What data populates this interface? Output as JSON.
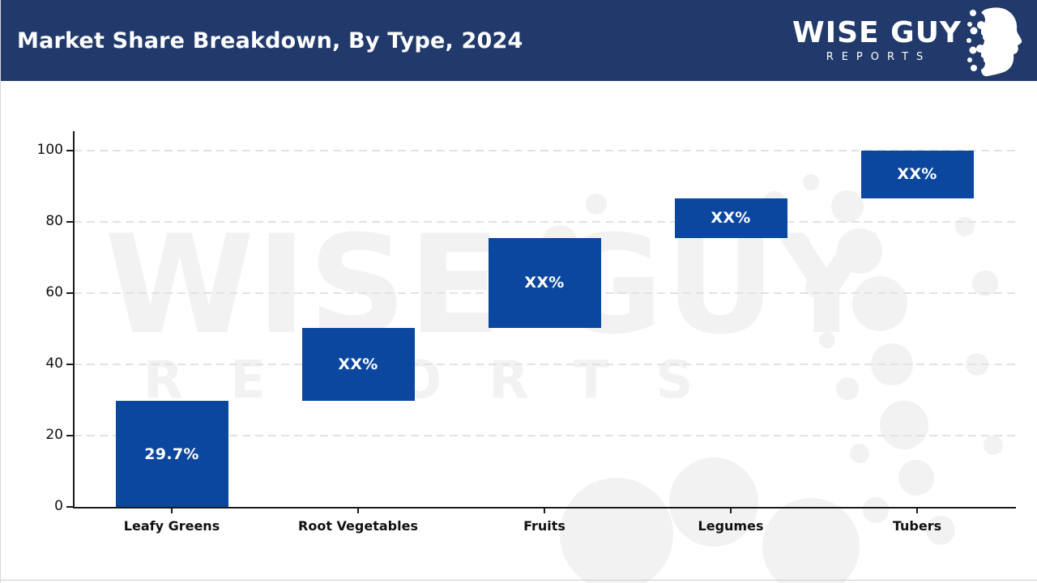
{
  "header": {
    "title": "Market Share Breakdown, By Type, 2024",
    "bg_color": "#223a6b",
    "logo": {
      "line1": "WISE GUY",
      "line2": "REPORTS"
    }
  },
  "watermark": {
    "line1": "WISE GUY",
    "line2": "REPORTS"
  },
  "chart_data": {
    "type": "bar",
    "subtype": "waterfall",
    "title": "Market Share Breakdown, By Type, 2024",
    "categories": [
      "Leafy Greens",
      "Root Vegetables",
      "Fruits",
      "Legumes",
      "Tubers"
    ],
    "segments": [
      {
        "category": "Leafy Greens",
        "start": 0,
        "end": 29.7,
        "value": 29.7,
        "label": "29.7%"
      },
      {
        "category": "Root Vegetables",
        "start": 29.7,
        "end": 50.2,
        "value": 20.5,
        "label": "XX%"
      },
      {
        "category": "Fruits",
        "start": 50.2,
        "end": 75.5,
        "value": 25.3,
        "label": "XX%"
      },
      {
        "category": "Legumes",
        "start": 75.5,
        "end": 86.6,
        "value": 11.1,
        "label": "XX%"
      },
      {
        "category": "Tubers",
        "start": 86.6,
        "end": 100,
        "value": 13.4,
        "label": "XX%"
      }
    ],
    "y_ticks": [
      0,
      20,
      40,
      60,
      80,
      100
    ],
    "y_max": 100,
    "ylim": [
      0,
      105
    ],
    "xlabel": "",
    "ylabel": "",
    "grid": true,
    "grid_style": "dashed",
    "legend": false,
    "bar_color": "#0b479e",
    "bar_label_color": "#ffffff",
    "axis_color": "#1a1a1a",
    "grid_color": "#e2e2e2",
    "watermark_color": "#f2f2f2"
  }
}
